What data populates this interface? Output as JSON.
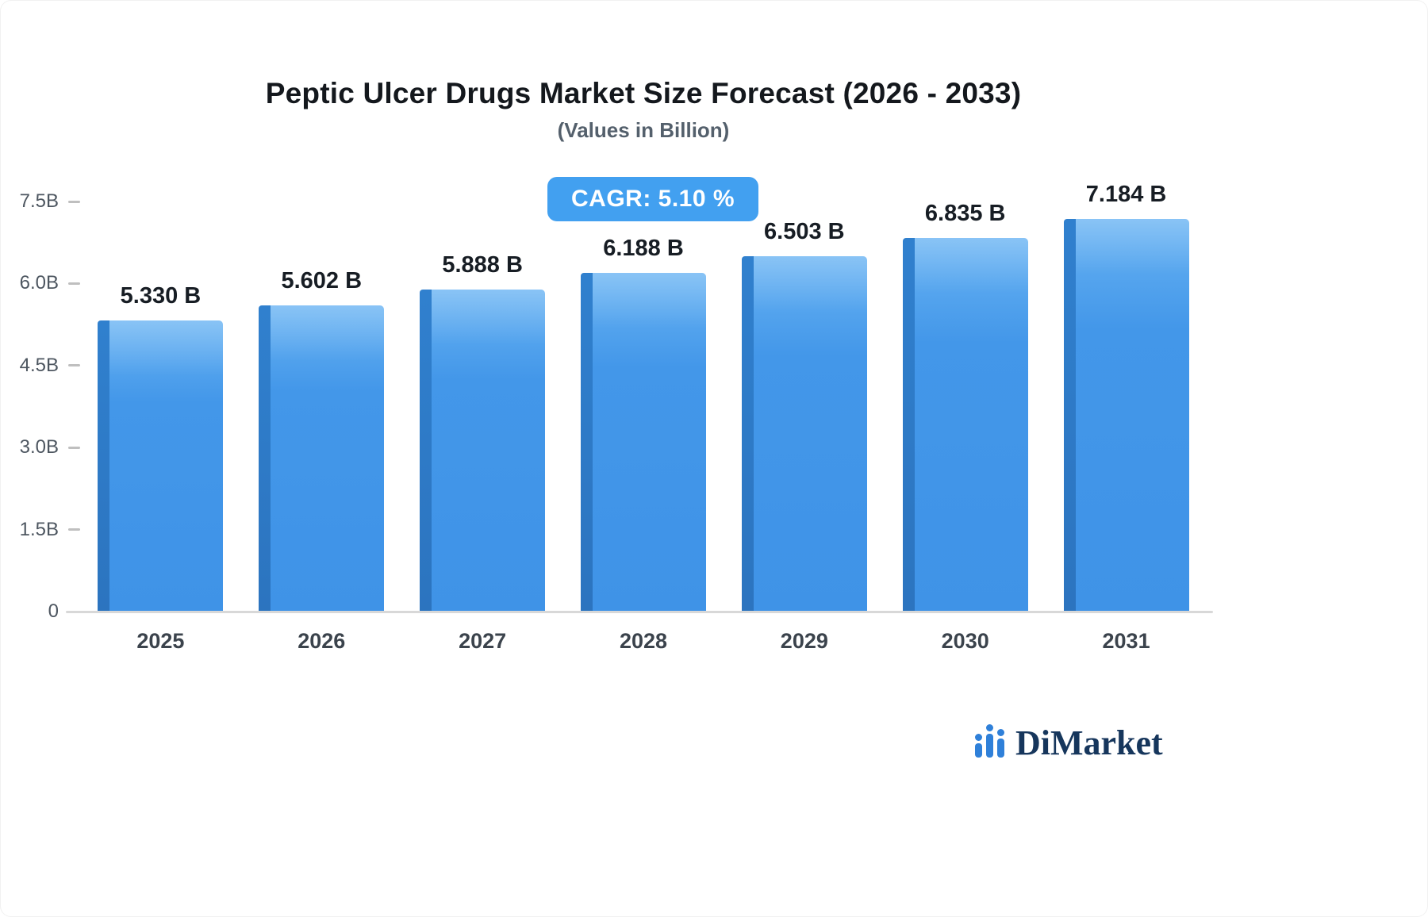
{
  "title": "Peptic Ulcer Drugs Market Size Forecast (2026 - 2033)",
  "subtitle": "(Values in Billion)",
  "badge": {
    "label": "CAGR: 5.10 %"
  },
  "logo": {
    "text": "DiMarket",
    "accent_color": "#2f80d9",
    "text_color": "#16365c"
  },
  "colors": {
    "bar_face": "#4397e9",
    "bar_side": "#2c74bf",
    "badge_bg": "#42a0f0"
  },
  "chart_data": {
    "type": "bar",
    "title": "Peptic Ulcer Drugs Market Size Forecast (2026 - 2033)",
    "subtitle": "(Values in Billion)",
    "categories": [
      "2025",
      "2026",
      "2027",
      "2028",
      "2029",
      "2030",
      "2031"
    ],
    "values": [
      5.33,
      5.602,
      5.888,
      6.188,
      6.503,
      6.835,
      7.184
    ],
    "value_labels": [
      "5.330 B",
      "5.602 B",
      "5.888 B",
      "6.188 B",
      "6.503 B",
      "6.835 B",
      "7.184 B"
    ],
    "xlabel": "",
    "ylabel": "",
    "ylim": [
      0,
      7.5
    ],
    "yticks": [
      {
        "label": "7.5B",
        "value": 7.5
      },
      {
        "label": "6.0B",
        "value": 6.0
      },
      {
        "label": "4.5B",
        "value": 4.5
      },
      {
        "label": "3.0B",
        "value": 3.0
      },
      {
        "label": "1.5B",
        "value": 1.5
      },
      {
        "label": "0",
        "value": 0.0
      }
    ],
    "grid": false,
    "legend": "none",
    "annotation": "CAGR: 5.10 %"
  }
}
